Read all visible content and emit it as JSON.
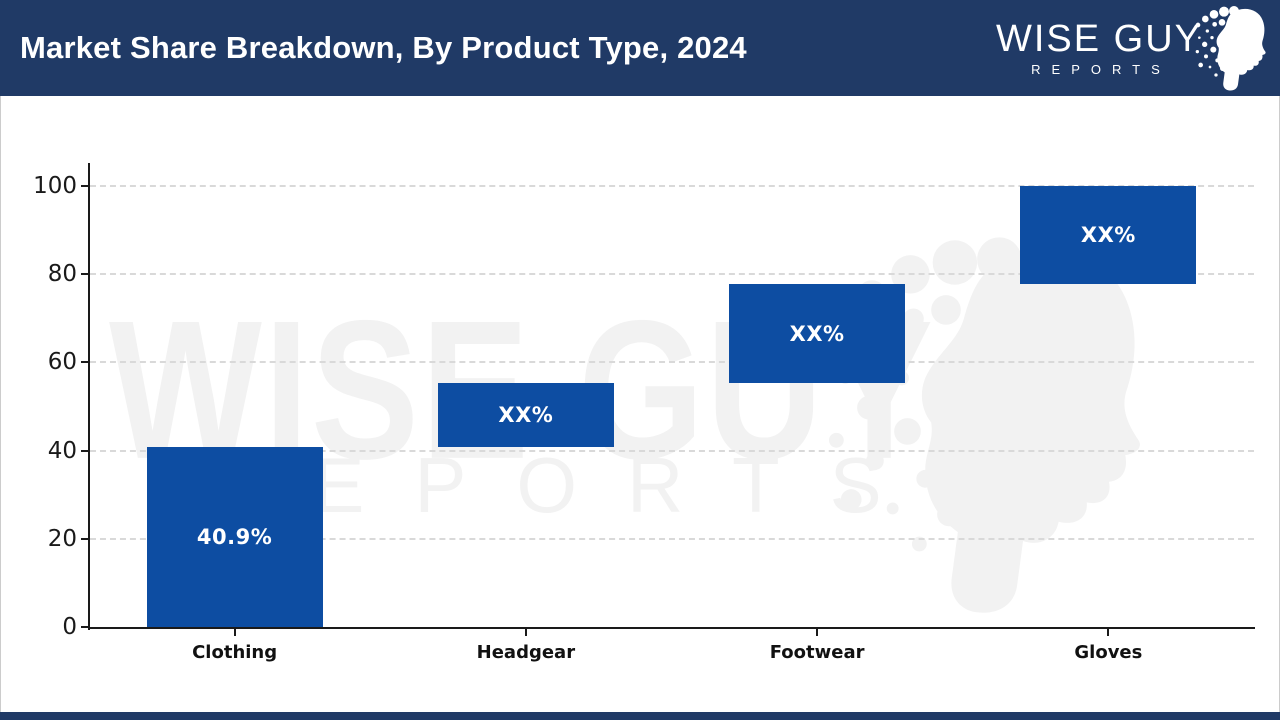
{
  "header": {
    "title": "Market Share Breakdown, By Product Type, 2024",
    "bg_color": "#203a66",
    "logo": {
      "wordmark": "WISE GUY",
      "subtitle": "REPORTS"
    }
  },
  "watermark": {
    "wordmark": "WISE GUY",
    "subtitle": "REPORTS"
  },
  "chart_data": {
    "type": "bar",
    "subtype": "floating-waterfall",
    "title": "Market Share Breakdown, By Product Type, 2024",
    "categories": [
      "Clothing",
      "Headgear",
      "Footwear",
      "Gloves"
    ],
    "segments": [
      {
        "category": "Clothing",
        "start": 0,
        "end": 40.9,
        "label": "40.9%"
      },
      {
        "category": "Headgear",
        "start": 40.9,
        "end": 55.3,
        "label": "XX%"
      },
      {
        "category": "Footwear",
        "start": 55.3,
        "end": 77.7,
        "label": "XX%"
      },
      {
        "category": "Gloves",
        "start": 77.7,
        "end": 100,
        "label": "XX%"
      }
    ],
    "xlabel": "",
    "ylabel": "",
    "ylim": [
      0,
      100
    ],
    "yticks": [
      0,
      20,
      40,
      60,
      80,
      100
    ],
    "grid": "horizontal-dashed",
    "legend": "none",
    "bar_color": "#0d4da2",
    "bar_label_color": "#ffffff",
    "axis_color": "#1a1a1a",
    "grid_color": "#d9d9d9"
  }
}
